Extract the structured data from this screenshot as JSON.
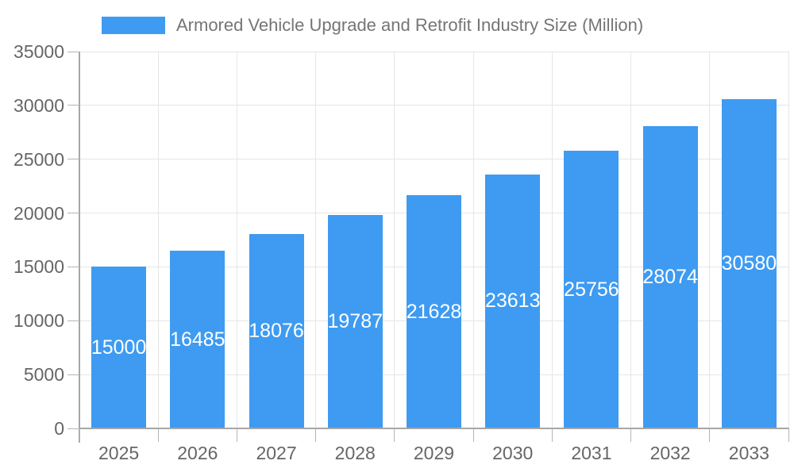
{
  "colors": {
    "bar": "#3E9BF1",
    "grid": "#E6E6E6",
    "axis": "#A6A6A6",
    "tick": "#B5B5B5",
    "tick_text": "#666666",
    "legend_text": "#757575",
    "bar_label_text": "#FFFFFF",
    "background": "#FFFFFF"
  },
  "legend": {
    "entries": [
      "Armored Vehicle Upgrade and Retrofit Industry Size (Million)"
    ]
  },
  "chart_data": {
    "type": "bar",
    "title": "Armored Vehicle Upgrade and Retrofit Industry Size (Million)",
    "categories": [
      "2025",
      "2026",
      "2027",
      "2028",
      "2029",
      "2030",
      "2031",
      "2032",
      "2033"
    ],
    "values": [
      15000,
      16485,
      18076,
      19787,
      21628,
      23613,
      25756,
      28074,
      30580
    ],
    "xlabel": "",
    "ylabel": "",
    "ylim": [
      0,
      35000
    ],
    "yticks": [
      0,
      5000,
      10000,
      15000,
      20000,
      25000,
      30000,
      35000
    ],
    "grid": true,
    "legend_position": "top",
    "bar_label_position": "inside-middle"
  }
}
